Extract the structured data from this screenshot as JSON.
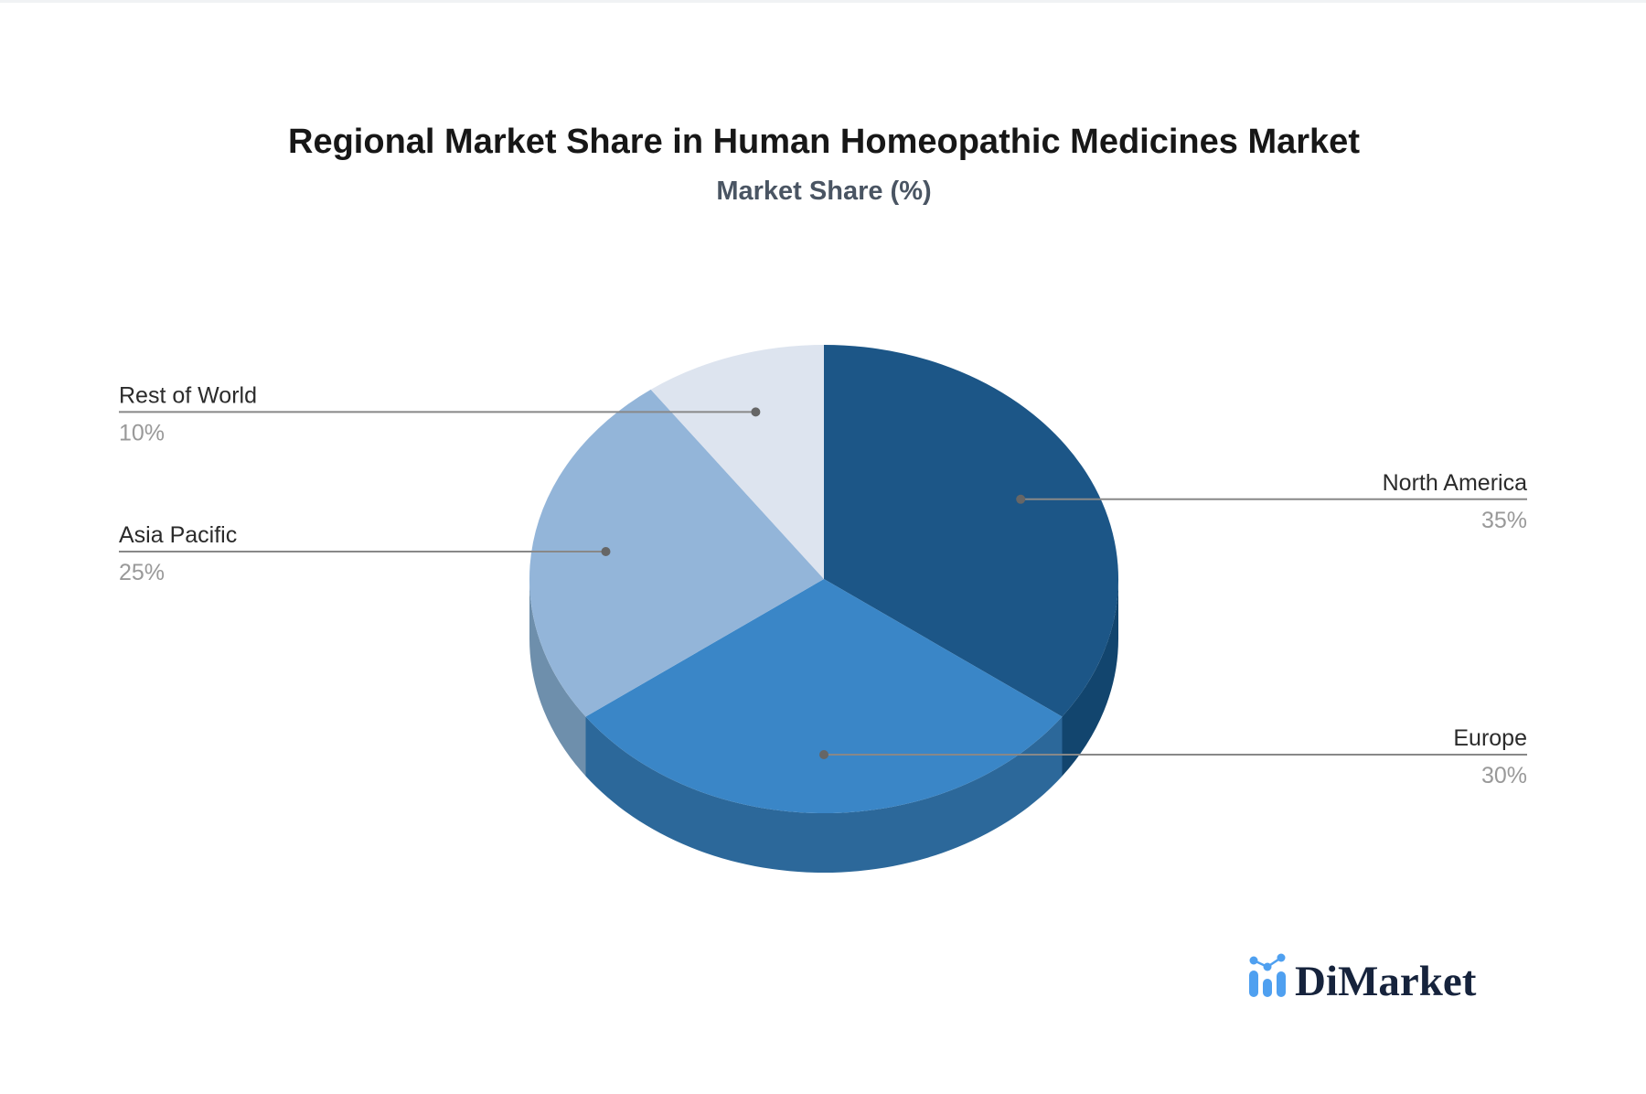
{
  "page": {
    "background": "#ffffff",
    "top_strip_color": "#f0f2f4"
  },
  "chart": {
    "title": "Regional Market Share in Human Homeopathic Medicines Market",
    "subtitle": "Market Share (%)",
    "title_color": "#171717",
    "subtitle_color": "#4a5563"
  },
  "chart_data": {
    "type": "pie",
    "title": "Regional Market Share in Human Homeopathic Medicines Market",
    "subtitle": "Market Share (%)",
    "unit": "%",
    "start_angle_deg": 0,
    "direction": "clockwise",
    "style_3d": true,
    "legend_position": "none",
    "labels": [
      "North America",
      "Europe",
      "Asia Pacific",
      "Rest of World"
    ],
    "values": [
      35,
      30,
      25,
      10
    ],
    "slices": [
      {
        "label": "North America",
        "value": 35,
        "pct_text": "35%",
        "color": "#1C5687",
        "side_color": "#12456E",
        "label_side": "right"
      },
      {
        "label": "Europe",
        "value": 30,
        "pct_text": "30%",
        "color": "#3A86C7",
        "side_color": "#2C689A",
        "label_side": "right"
      },
      {
        "label": "Asia Pacific",
        "value": 25,
        "pct_text": "25%",
        "color": "#93B5D9",
        "side_color": "#6E8FAC",
        "label_side": "left"
      },
      {
        "label": "Rest of World",
        "value": 10,
        "pct_text": "10%",
        "color": "#DDE4EF",
        "side_color": "#B9C6D8",
        "label_side": "left"
      }
    ],
    "label_name_color": "#2B2B2B",
    "label_pct_color": "#999999",
    "leader_line_color": "#888888",
    "leader_dot_color": "#666666"
  },
  "logo": {
    "text": "DiMarket",
    "text_color": "#16233C",
    "icon_color": "#4FA0F0",
    "icon_name": "bar-line-chart-icon"
  }
}
